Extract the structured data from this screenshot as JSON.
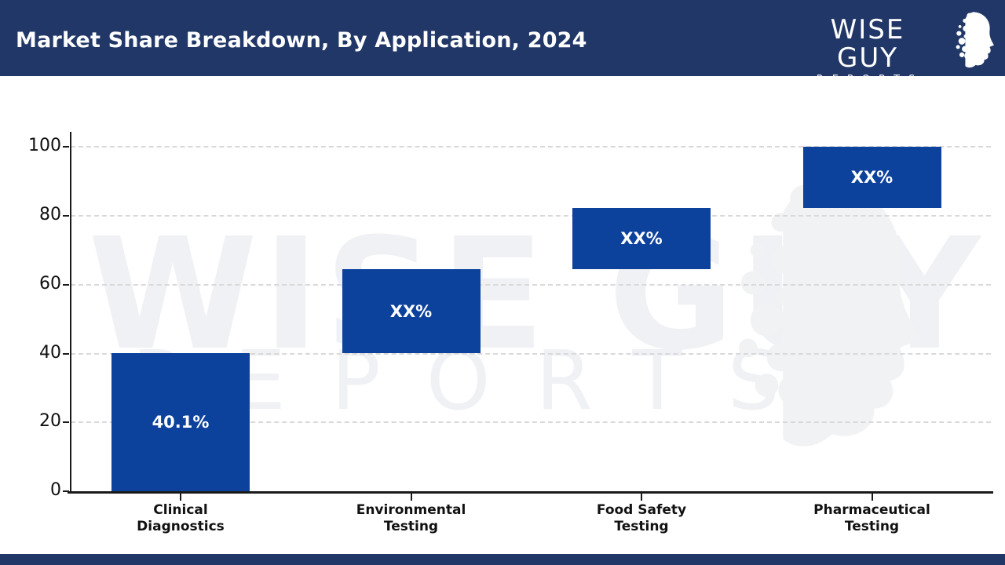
{
  "header": {
    "title": "Market Share Breakdown, By Application, 2024",
    "bg_color": "#213767",
    "logo": {
      "line1": "WISE GUY",
      "line2": "REPORTS"
    }
  },
  "watermark": {
    "line1": "WISE GUY",
    "line2": "REPORTS"
  },
  "chart_data": {
    "type": "bar",
    "subtype": "waterfall-stacked-percentage",
    "title": "Market Share Breakdown, By Application, 2024",
    "categories": [
      "Clinical Diagnostics",
      "Environmental Testing",
      "Food Safety Testing",
      "Pharmaceutical Testing"
    ],
    "category_lines": [
      [
        "Clinical",
        "Diagnostics"
      ],
      [
        "Environmental",
        "Testing"
      ],
      [
        "Food Safety",
        "Testing"
      ],
      [
        "Pharmaceutical",
        "Testing"
      ]
    ],
    "bars": [
      {
        "category": "Clinical Diagnostics",
        "label": "40.1%",
        "start": 0,
        "end": 40.1
      },
      {
        "category": "Environmental Testing",
        "label": "XX%",
        "start": 40.1,
        "end": 64.5
      },
      {
        "category": "Food Safety Testing",
        "label": "XX%",
        "start": 64.5,
        "end": 82.2
      },
      {
        "category": "Pharmaceutical Testing",
        "label": "XX%",
        "start": 82.2,
        "end": 100
      }
    ],
    "y_ticks": [
      0,
      20,
      40,
      60,
      80,
      100
    ],
    "ylim": [
      0,
      104
    ],
    "xlabel": "",
    "ylabel": "",
    "bar_color": "#0c419c",
    "grid": "horizontal-dashed",
    "grid_color": "#d9d9d9",
    "legend": "none"
  }
}
